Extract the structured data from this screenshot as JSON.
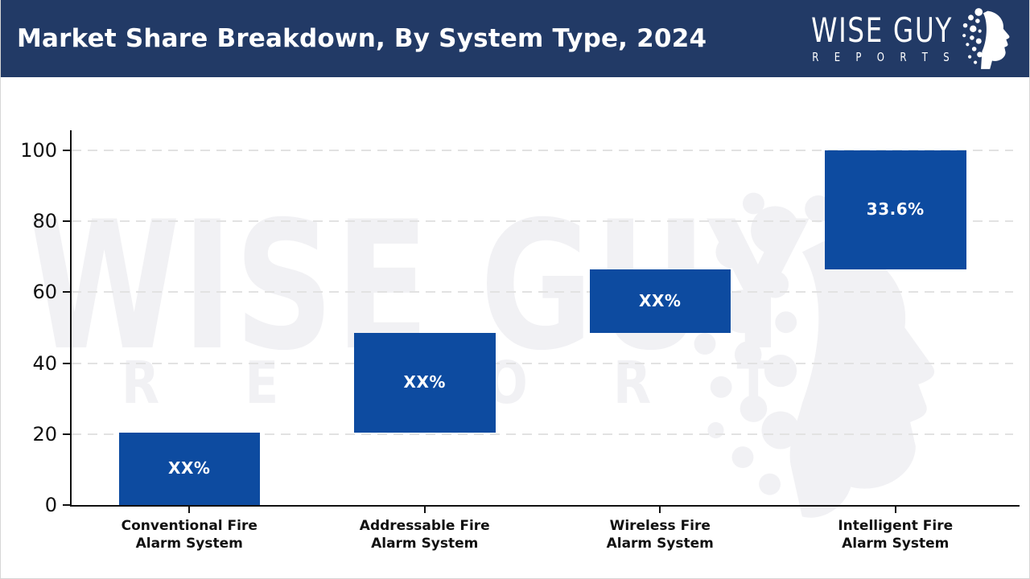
{
  "header": {
    "title": "Market Share Breakdown, By System Type, 2024",
    "bg_color": "#223A66",
    "logo": {
      "brand": "WISE GUY",
      "sub": "R E P O R T S"
    }
  },
  "watermark": {
    "brand": "WISE GUY",
    "sub": "R E P O R T S"
  },
  "chart_data": {
    "type": "bar",
    "variant": "waterfall",
    "title": "Market Share Breakdown, By System Type, 2024",
    "categories": [
      [
        "Conventional Fire",
        "Alarm System"
      ],
      [
        "Addressable Fire",
        "Alarm System"
      ],
      [
        "Wireless Fire",
        "Alarm System"
      ],
      [
        "Intelligent Fire",
        "Alarm System"
      ]
    ],
    "segments": [
      {
        "category": "Conventional Fire Alarm System",
        "label": "XX%",
        "start": 0,
        "end": 20.5
      },
      {
        "category": "Addressable Fire Alarm System",
        "label": "XX%",
        "start": 20.5,
        "end": 48.5
      },
      {
        "category": "Wireless Fire Alarm System",
        "label": "XX%",
        "start": 48.5,
        "end": 66.4
      },
      {
        "category": "Intelligent Fire Alarm System",
        "label": "33.6%",
        "start": 66.4,
        "end": 100
      }
    ],
    "yticks": [
      0,
      20,
      40,
      60,
      80,
      100
    ],
    "ylim": [
      0,
      100
    ],
    "xlabel": "",
    "ylabel": "",
    "legend": "none",
    "grid": "horizontal-dashed",
    "bar_color": "#0D4BA0",
    "bar_label_color": "#FFFFFF",
    "axis_color": "#111111",
    "gridline_color": "#E2E2E2"
  }
}
